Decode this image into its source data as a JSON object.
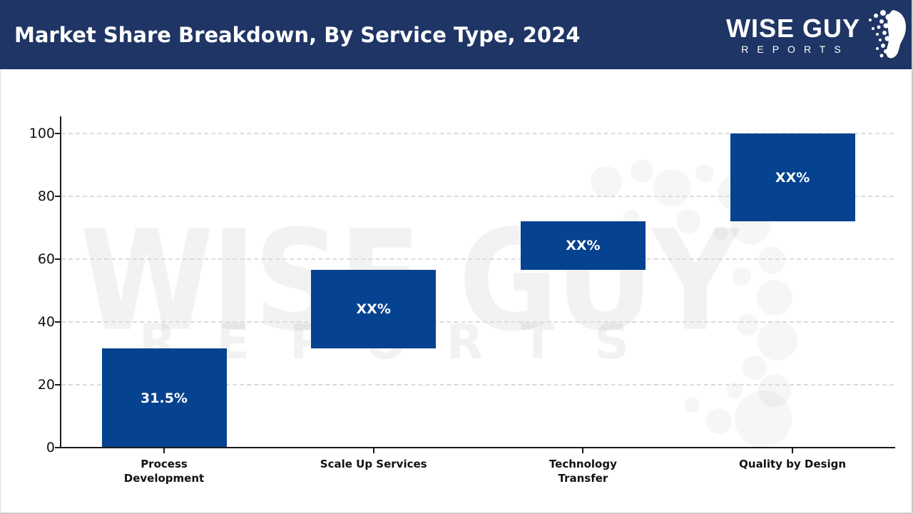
{
  "header": {
    "title": "Market Share Breakdown, By Service Type, 2024",
    "bg_color": "#1f3565",
    "logo": {
      "brand": "WISE GUY",
      "sub": "REPORTS"
    }
  },
  "watermark": {
    "brand": "WISE GUY",
    "sub": "REPORTS"
  },
  "chart_data": {
    "type": "bar",
    "subtype": "waterfall",
    "title": "Market Share Breakdown, By Service Type, 2024",
    "xlabel": "",
    "ylabel": "",
    "ylim": [
      0,
      100
    ],
    "yticks": [
      0,
      20,
      40,
      60,
      80,
      100
    ],
    "grid": {
      "show": true,
      "style": "dashed",
      "color": "#dcdcdc"
    },
    "bar_color": "#05428f",
    "value_label_color": "#ffffff",
    "categories": [
      "Process\nDevelopment",
      "Scale Up Services",
      "Technology\nTransfer",
      "Quality by Design"
    ],
    "segments": [
      {
        "start": 0,
        "end": 31.5,
        "label": "31.5%"
      },
      {
        "start": 31.5,
        "end": 56.5,
        "label": "XX%"
      },
      {
        "start": 56.5,
        "end": 72.0,
        "label": "XX%"
      },
      {
        "start": 72.0,
        "end": 100.0,
        "label": "XX%"
      }
    ]
  }
}
